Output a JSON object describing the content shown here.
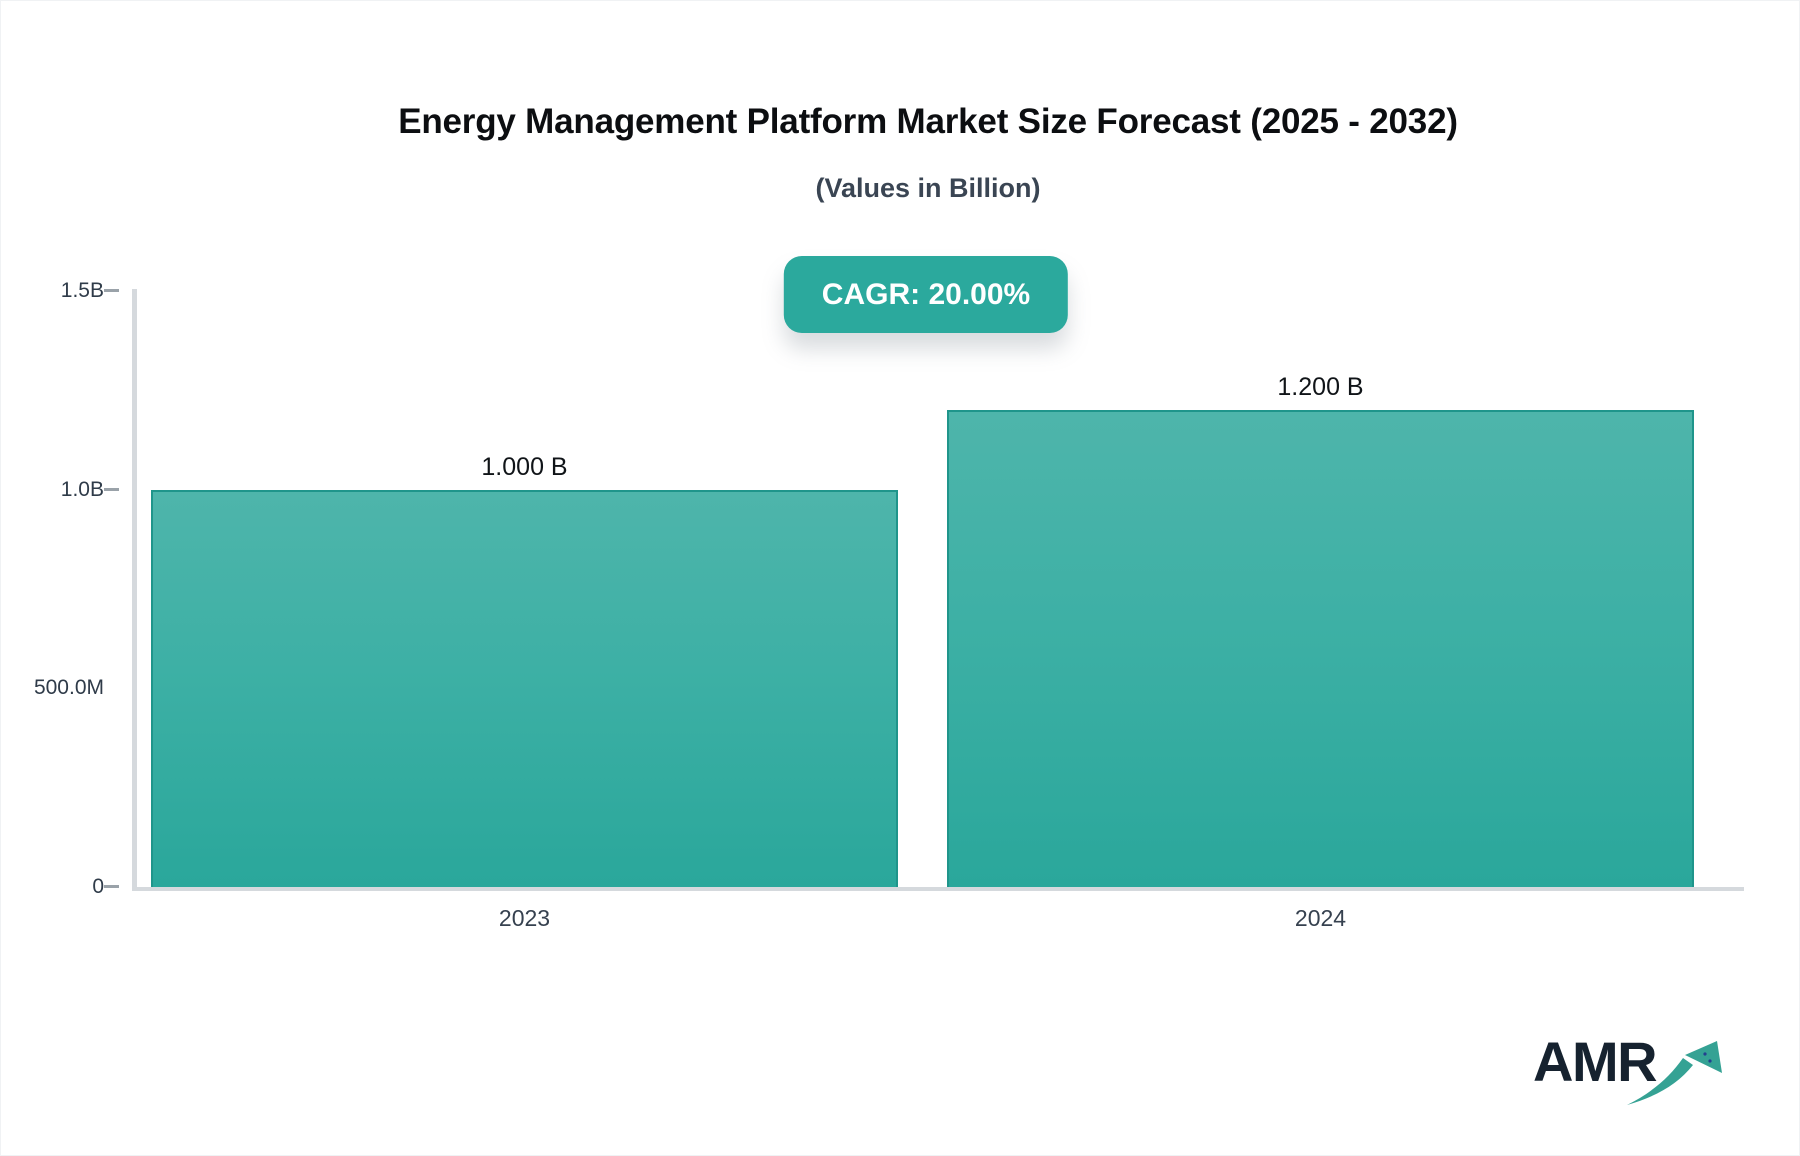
{
  "header": {
    "title": "Energy Management Platform Market Size Forecast (2025 - 2032)",
    "subtitle": "(Values in Billion)",
    "cagr_label": "CAGR: 20.00%"
  },
  "chart_data": {
    "type": "bar",
    "title": "Energy Management Platform Market Size Forecast (2025 - 2032)",
    "subtitle": "(Values in Billion)",
    "cagr_pct": 20.0,
    "unit": "Billion",
    "categories": [
      "2023",
      "2024"
    ],
    "values": [
      1.0,
      1.2
    ],
    "value_labels": [
      "1.000 B",
      "1.200 B"
    ],
    "ylim": [
      0,
      1.5
    ],
    "yticks": [
      {
        "value": 0,
        "label": "0",
        "dash": true
      },
      {
        "value": 0.5,
        "label": "500.0M",
        "dash": false
      },
      {
        "value": 1.0,
        "label": "1.0B",
        "dash": true
      },
      {
        "value": 1.5,
        "label": "1.5B",
        "dash": true
      }
    ],
    "grid": false,
    "legend": null,
    "colors": {
      "bar_gradient_top": "#4eb5ab",
      "bar_gradient_bottom": "#2aa79b",
      "bar_border": "#1f958b",
      "axis_line": "#d5d9dd",
      "tick_mark": "#9aa2a9",
      "badge_background": "#2ba99d",
      "badge_text": "#ffffff"
    }
  },
  "branding": {
    "logo_text": "AMR",
    "logo_color": "#16222f",
    "arrow_color": "#35a294"
  }
}
